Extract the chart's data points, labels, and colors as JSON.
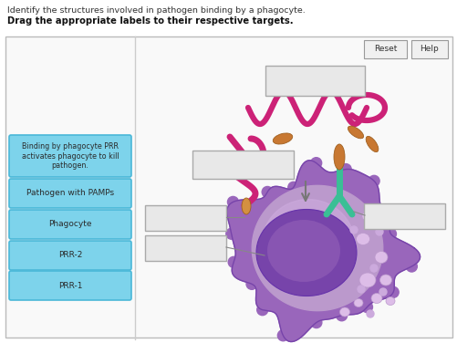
{
  "title_line1": "Identify the structures involved in pathogen binding by a phagocyte.",
  "title_line2": "Drag the appropriate labels to their respective targets.",
  "bg_color": "#ffffff",
  "panel_bg": "#f9f9f9",
  "panel_border": "#bbbbbb",
  "divider_color": "#cccccc",
  "label_btn_color": "#7dd3eb",
  "label_btn_border": "#4ab8d8",
  "label_btn_text_color": "#2a2a2a",
  "label_buttons": [
    "Binding by phagocyte PRR\nactivates phagocyte to kill\npathogen.",
    "Pathogen with PAMPs",
    "Phagocyte",
    "PRR-2",
    "PRR-1"
  ],
  "reset_label": "Reset",
  "help_label": "Help",
  "pink_color": "#cc2277",
  "teal_color": "#3abf95",
  "gold_color": "#c87832",
  "gold_dark": "#a06020",
  "phago_outer": "#8855aa",
  "phago_mid": "#9966bb",
  "phago_light": "#bb99cc",
  "phago_highlight": "#ddc0e8",
  "nucleus_color": "#6633aa",
  "nucleus_light": "#9977bb",
  "box_fill": "#e8e8e8",
  "box_edge": "#aaaaaa",
  "arrow_color": "#777777",
  "line_color": "#888888"
}
